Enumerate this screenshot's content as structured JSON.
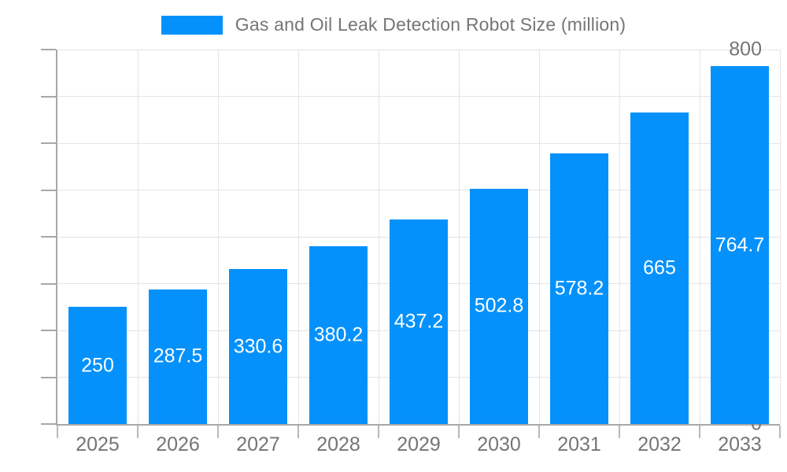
{
  "legend": {
    "label": "Gas and Oil Leak Detection Robot Size (million)"
  },
  "chart_data": {
    "type": "bar",
    "title": "Gas and Oil Leak Detection Robot Size (million)",
    "categories": [
      "2025",
      "2026",
      "2027",
      "2028",
      "2029",
      "2030",
      "2031",
      "2032",
      "2033"
    ],
    "values": [
      250,
      287.5,
      330.6,
      380.2,
      437.2,
      502.8,
      578.2,
      665,
      764.7
    ],
    "value_labels": [
      "250",
      "287.5",
      "330.6",
      "380.2",
      "437.2",
      "502.8",
      "578.2",
      "665",
      "764.7"
    ],
    "xlabel": "",
    "ylabel": "",
    "ylim": [
      0,
      800
    ],
    "yticks": [
      0,
      100,
      200,
      300,
      400,
      500,
      600,
      700,
      800
    ],
    "grid": true,
    "legend_position": "top",
    "bar_color": "#0591FB",
    "value_label_color": "#ffffff",
    "axis_text_color": "#757575",
    "axis_line_color": "#a8a8a8",
    "gridline_color": "#e4e4e4",
    "background_color": "#ffffff"
  }
}
